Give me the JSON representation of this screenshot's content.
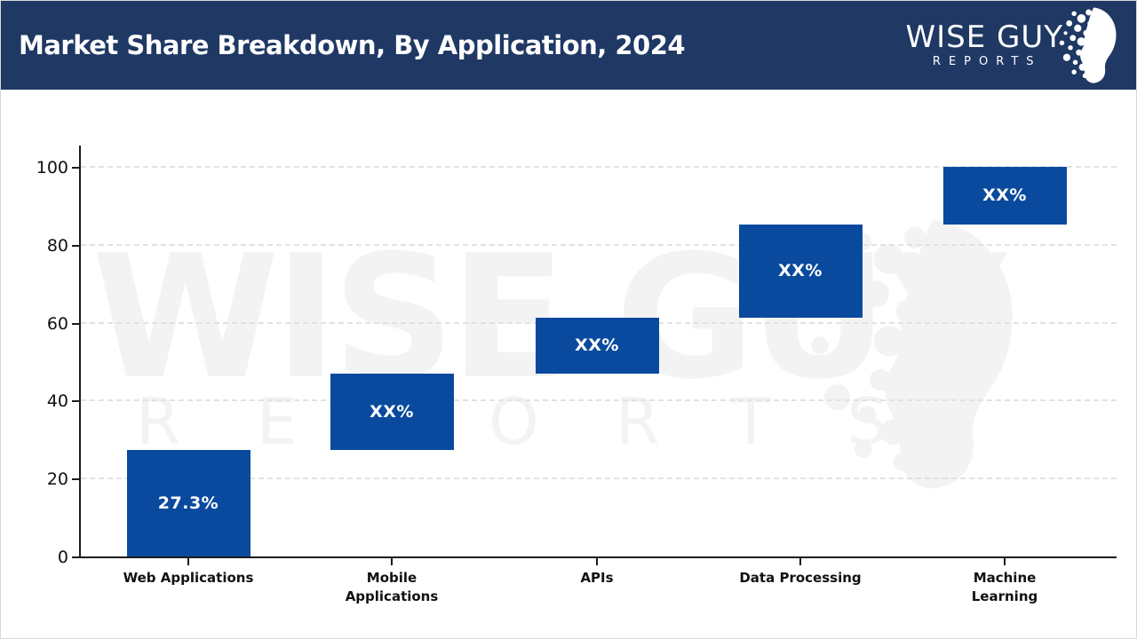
{
  "header": {
    "title": "Market Share Breakdown, By Application, 2024",
    "logo": {
      "name": "WISE GUY",
      "subtitle": "REPORTS"
    }
  },
  "watermark": {
    "line1": "WISE GUY",
    "line2": "REPORTS"
  },
  "colors": {
    "header_bg": "#1f3864",
    "bar": "#0a4a9e",
    "bar_label_text": "#ffffff",
    "axis": "#1c1c1c",
    "gridline": "#e2e2e2",
    "tick_text": "#111111",
    "watermark": "#f3f3f3",
    "title_text": "#ffffff"
  },
  "chart_data": {
    "type": "bar",
    "subtype": "waterfall",
    "title": "Market Share Breakdown, By Application, 2024",
    "xlabel": "",
    "ylabel": "",
    "ylim": [
      0,
      100
    ],
    "yticks": [
      0,
      20,
      40,
      60,
      80,
      100
    ],
    "grid": "horizontal-dashed",
    "legend": false,
    "categories": [
      "Web Applications",
      "Mobile Applications",
      "APIs",
      "Data Processing",
      "Machine Learning"
    ],
    "xtick_labels": [
      "Web Applications",
      "Mobile\nApplications",
      "APIs",
      "Data Processing",
      "Machine Learning"
    ],
    "segments": [
      {
        "category": "Web Applications",
        "start": 0,
        "end": 27.3,
        "label": "27.3%"
      },
      {
        "category": "Mobile Applications",
        "start": 27.3,
        "end": 47.0,
        "label": "XX%"
      },
      {
        "category": "APIs",
        "start": 47.0,
        "end": 61.3,
        "label": "XX%"
      },
      {
        "category": "Data Processing",
        "start": 61.3,
        "end": 85.2,
        "label": "XX%"
      },
      {
        "category": "Machine Learning",
        "start": 85.2,
        "end": 100,
        "label": "XX%"
      }
    ]
  }
}
